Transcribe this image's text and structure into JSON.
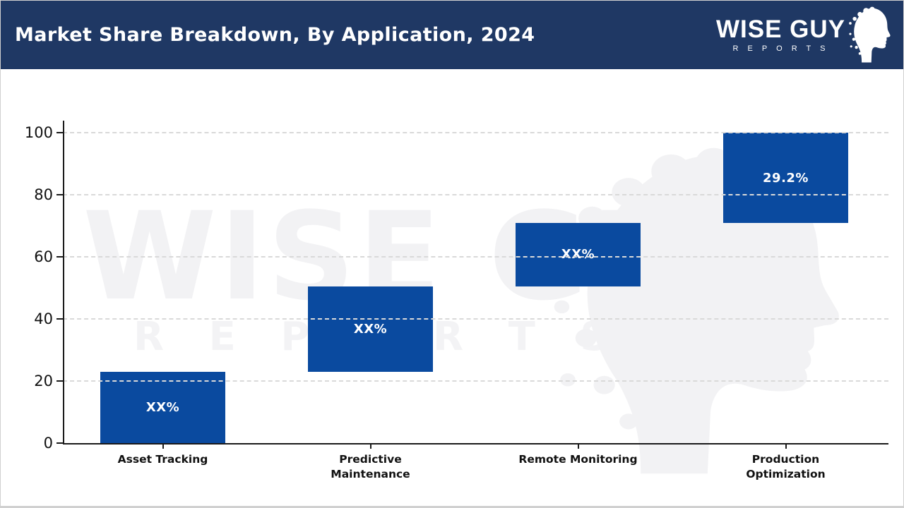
{
  "header": {
    "title": "Market Share Breakdown, By Application, 2024",
    "logo": {
      "name": "WISE GUY",
      "sub": "R E P O R T S"
    }
  },
  "watermark": {
    "line1": "WISE GUY",
    "line2": "R E P O R T S"
  },
  "colors": {
    "header_bg": "#1f3864",
    "bar_blue": "#0a4a9f",
    "gridline": "#d9d9d9",
    "axis": "#1a1a1a",
    "value_label": "#ffffff",
    "axis_text": "#111111",
    "watermark": "#f2f2f4"
  },
  "chart_data": {
    "type": "bar",
    "subtype": "waterfall",
    "title": "Market Share Breakdown, By Application, 2024",
    "categories": [
      "Asset Tracking",
      "Predictive\nMaintenance",
      "Remote Monitoring",
      "Production\nOptimization"
    ],
    "segments": [
      {
        "category": "Asset Tracking",
        "start": 0,
        "end": 23,
        "value_label": "XX%"
      },
      {
        "category": "Predictive Maintenance",
        "start": 23,
        "end": 50.5,
        "value_label": "XX%"
      },
      {
        "category": "Remote Monitoring",
        "start": 50.5,
        "end": 71,
        "value_label": "XX%"
      },
      {
        "category": "Production Optimization",
        "start": 70.8,
        "end": 100,
        "value_label": "29.2%"
      }
    ],
    "ylim": [
      0,
      100
    ],
    "yticks": [
      0,
      20,
      40,
      60,
      80,
      100
    ],
    "xlabel": "",
    "ylabel": "",
    "grid": "horizontal-dashed-over-bars",
    "legend": "none",
    "bar_color": "#0a4a9f",
    "value_label_color": "#ffffff"
  }
}
